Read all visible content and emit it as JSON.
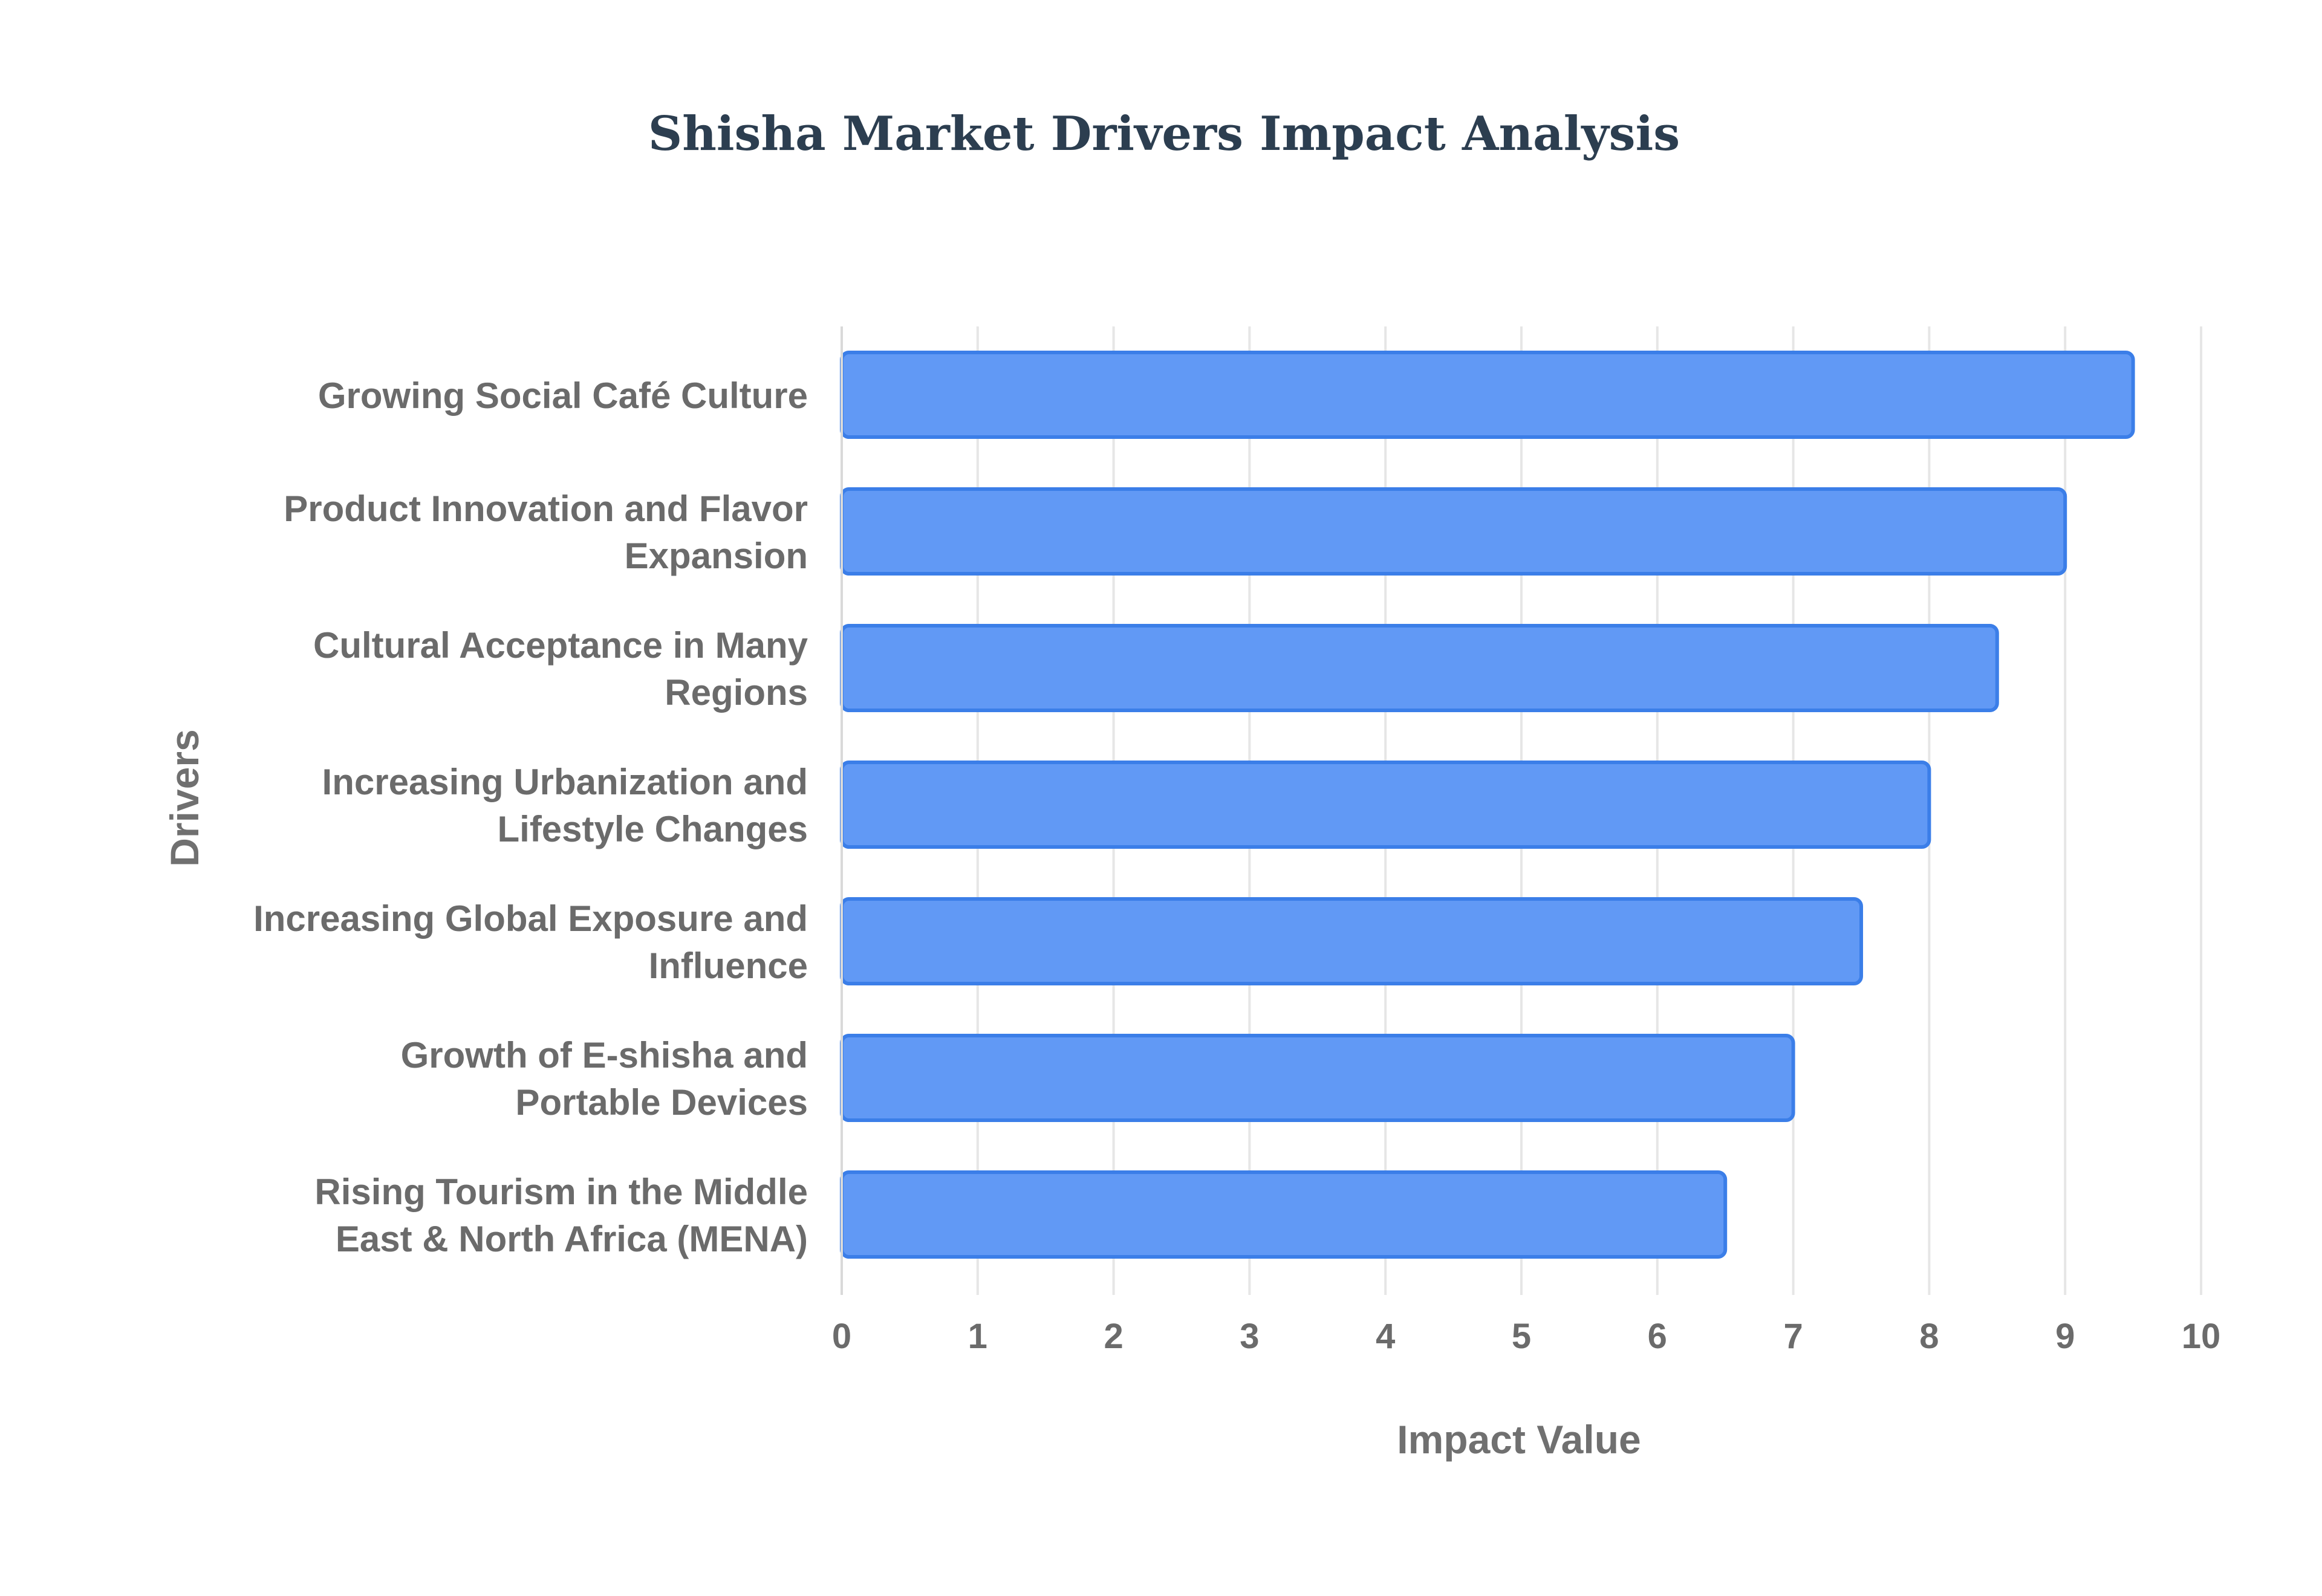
{
  "chart_data": {
    "type": "bar",
    "orientation": "horizontal",
    "title": "Shisha Market Drivers Impact Analysis",
    "xlabel": "Impact Value",
    "ylabel": "Drivers",
    "xlim": [
      0,
      10
    ],
    "xticks": [
      "0",
      "1",
      "2",
      "3",
      "4",
      "5",
      "6",
      "7",
      "8",
      "9",
      "10"
    ],
    "grid": true,
    "legend": "none",
    "bar_color": "#6199f5",
    "bar_edge_color": "#3b7ee8",
    "categories": [
      [
        "Growing Social Café Culture"
      ],
      [
        "Product Innovation and Flavor",
        "Expansion"
      ],
      [
        "Cultural Acceptance in Many",
        "Regions"
      ],
      [
        "Increasing Urbanization and",
        "Lifestyle Changes"
      ],
      [
        "Increasing Global Exposure and",
        "Influence"
      ],
      [
        "Growth of E-shisha and",
        "Portable Devices"
      ],
      [
        "Rising Tourism in the Middle",
        "East & North Africa (MENA)"
      ]
    ],
    "values": [
      9.5,
      9.0,
      8.5,
      8.0,
      7.5,
      7.0,
      6.5
    ]
  }
}
